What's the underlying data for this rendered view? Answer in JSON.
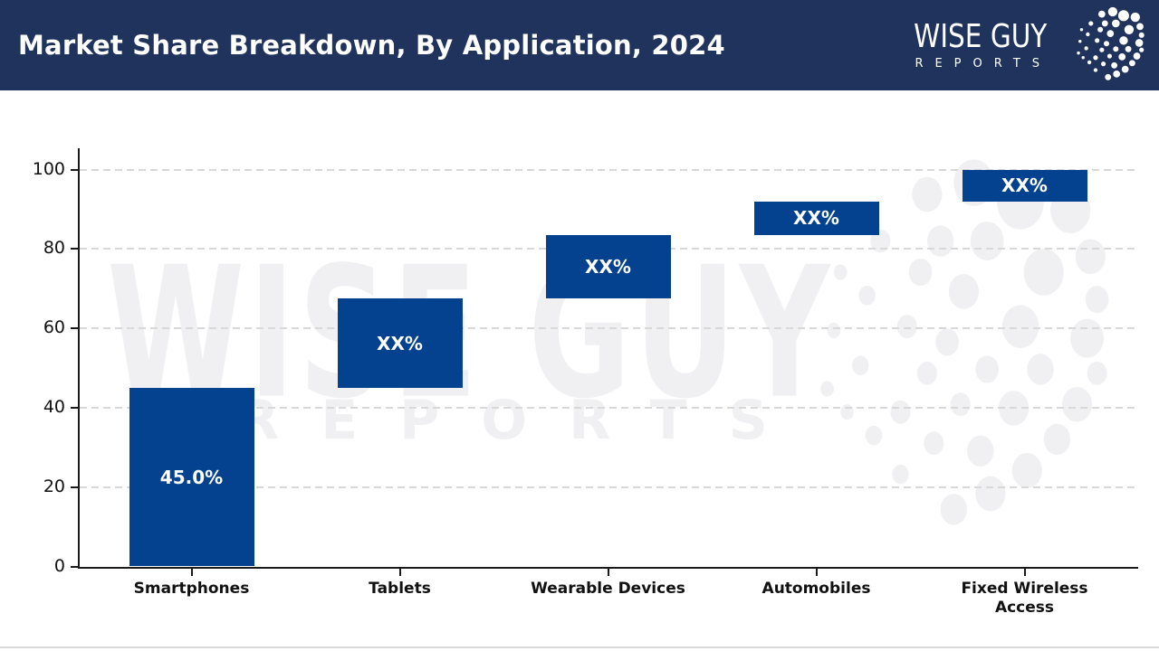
{
  "header": {
    "title": "Market Share Breakdown, By Application, 2024",
    "logo": {
      "name": "WISE GUY",
      "tagline": "REPORTS"
    }
  },
  "watermark": {
    "name": "WISE GUY",
    "tagline": "REPORTS"
  },
  "chart_data": {
    "type": "bar",
    "subtype": "floating-waterfall",
    "title": "Market Share Breakdown, By Application, 2024",
    "categories": [
      "Smartphones",
      "Tablets",
      "Wearable Devices",
      "Automobiles",
      "Fixed Wireless Access"
    ],
    "segments": [
      {
        "category": "Smartphones",
        "start": 0,
        "end": 45,
        "label": "45.0%"
      },
      {
        "category": "Tablets",
        "start": 45,
        "end": 67.5,
        "label": "XX%"
      },
      {
        "category": "Wearable Devices",
        "start": 67.5,
        "end": 83.5,
        "label": "XX%"
      },
      {
        "category": "Automobiles",
        "start": 83.5,
        "end": 92,
        "label": "XX%"
      },
      {
        "category": "Fixed Wireless Access",
        "start": 92,
        "end": 100,
        "label": "XX%"
      }
    ],
    "ylim": [
      0,
      100
    ],
    "yticks": [
      0,
      20,
      40,
      60,
      80,
      100
    ],
    "grid": "horizontal-dashed",
    "legend": "none",
    "bar_color": "#04428f",
    "bar_label_color": "#ffffff"
  },
  "colors": {
    "header_bg": "#20335c",
    "bar": "#04428f",
    "axis": "#1a1a1a",
    "grid": "#d8d8d8",
    "watermark": "#f0f0f2",
    "background": "#ffffff"
  }
}
